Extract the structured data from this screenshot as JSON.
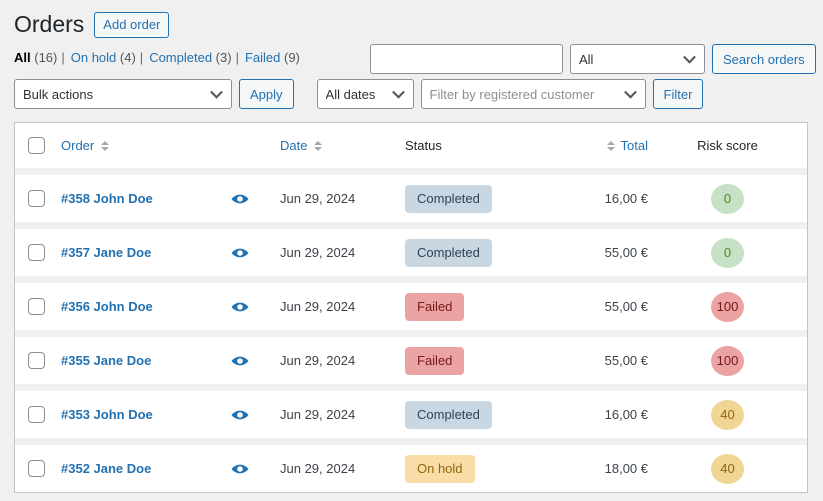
{
  "page": {
    "title": "Orders",
    "add_order_label": "Add order"
  },
  "status_filters": {
    "separator": "|",
    "items": [
      {
        "label": "All",
        "count": "(16)",
        "active": true
      },
      {
        "label": "On hold",
        "count": "(4)",
        "active": false
      },
      {
        "label": "Completed",
        "count": "(3)",
        "active": false
      },
      {
        "label": "Failed",
        "count": "(9)",
        "active": false
      }
    ]
  },
  "search": {
    "input_value": "",
    "type_select_value": "All",
    "button_label": "Search orders"
  },
  "toolbar": {
    "bulk_actions_value": "Bulk actions",
    "apply_label": "Apply",
    "dates_value": "All dates",
    "customer_filter_placeholder": "Filter by registered customer",
    "filter_label": "Filter"
  },
  "table": {
    "columns": {
      "order": "Order",
      "date": "Date",
      "status": "Status",
      "total": "Total",
      "risk_score": "Risk score"
    },
    "sortable_columns": [
      "Order",
      "Date",
      "Total"
    ],
    "rows": [
      {
        "order": "#358 John Doe",
        "date": "Jun 29, 2024",
        "status": "Completed",
        "status_type": "completed",
        "total": "16,00 €",
        "risk_score": "0",
        "risk_level": "low"
      },
      {
        "order": "#357 Jane Doe",
        "date": "Jun 29, 2024",
        "status": "Completed",
        "status_type": "completed",
        "total": "55,00 €",
        "risk_score": "0",
        "risk_level": "low"
      },
      {
        "order": "#356 John Doe",
        "date": "Jun 29, 2024",
        "status": "Failed",
        "status_type": "failed",
        "total": "55,00 €",
        "risk_score": "100",
        "risk_level": "high"
      },
      {
        "order": "#355 Jane Doe",
        "date": "Jun 29, 2024",
        "status": "Failed",
        "status_type": "failed",
        "total": "55,00 €",
        "risk_score": "100",
        "risk_level": "high"
      },
      {
        "order": "#353 John Doe",
        "date": "Jun 29, 2024",
        "status": "Completed",
        "status_type": "completed",
        "total": "16,00 €",
        "risk_score": "40",
        "risk_level": "medium"
      },
      {
        "order": "#352 Jane Doe",
        "date": "Jun 29, 2024",
        "status": "On hold",
        "status_type": "on-hold",
        "total": "18,00 €",
        "risk_score": "40",
        "risk_level": "medium"
      }
    ]
  },
  "colors": {
    "accent_blue": "#2271b1",
    "page_background": "#f0f0f1",
    "table_border": "#c3c4c7",
    "status_completed_bg": "#c8d7e1",
    "status_completed_text": "#2e4453",
    "status_on_hold_bg": "#f8dda7",
    "status_on_hold_text": "#94660c",
    "status_failed_bg": "#eba3a3",
    "status_failed_text": "#761919",
    "risk_low_bg": "#c6e1c6",
    "risk_low_text": "#5b841b",
    "risk_medium_bg": "#f0d594",
    "risk_medium_text": "#94660c",
    "risk_high_bg": "#eba3a3",
    "risk_high_text": "#761919"
  }
}
